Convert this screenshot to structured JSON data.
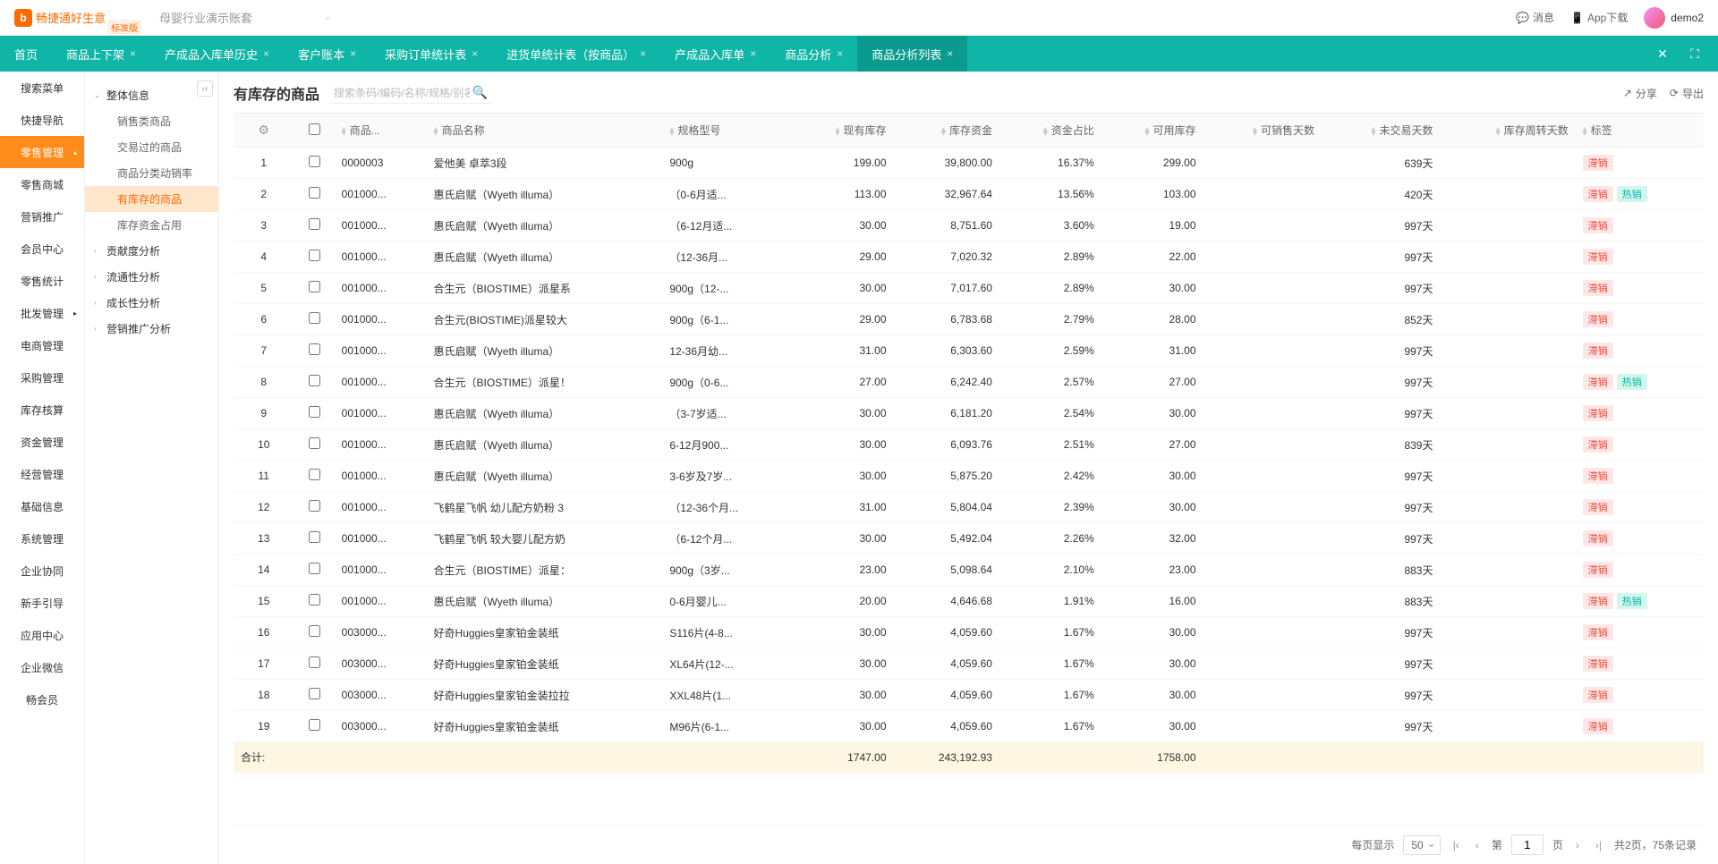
{
  "header": {
    "logo_text": "畅捷通好生意",
    "logo_badge": "标准版",
    "account": "母婴行业演示账套",
    "msg": "消息",
    "download": "App下载",
    "user": "demo2"
  },
  "tabs": [
    {
      "label": "首页",
      "closable": false
    },
    {
      "label": "商品上下架",
      "closable": true
    },
    {
      "label": "产成品入库单历史",
      "closable": true
    },
    {
      "label": "客户账本",
      "closable": true
    },
    {
      "label": "采购订单统计表",
      "closable": true
    },
    {
      "label": "进货单统计表（按商品）",
      "closable": true
    },
    {
      "label": "产成品入库单",
      "closable": true
    },
    {
      "label": "商品分析",
      "closable": true
    },
    {
      "label": "商品分析列表",
      "closable": true,
      "active": true
    }
  ],
  "main_nav": [
    {
      "label": "搜索菜单"
    },
    {
      "label": "快捷导航"
    },
    {
      "label": "零售管理",
      "active": true,
      "expandable": true
    },
    {
      "label": "零售商城"
    },
    {
      "label": "营销推广"
    },
    {
      "label": "会员中心"
    },
    {
      "label": "零售统计"
    },
    {
      "label": "批发管理",
      "expandable": true
    },
    {
      "label": "电商管理"
    },
    {
      "label": "采购管理"
    },
    {
      "label": "库存核算"
    },
    {
      "label": "资金管理"
    },
    {
      "label": "经营管理"
    },
    {
      "label": "基础信息"
    },
    {
      "label": "系统管理"
    },
    {
      "label": "企业协同"
    },
    {
      "label": "新手引导"
    },
    {
      "label": "应用中心"
    },
    {
      "label": "企业微信"
    },
    {
      "label": "畅会员"
    }
  ],
  "tree": [
    {
      "label": "整体信息",
      "level": 0,
      "expanded": true
    },
    {
      "label": "销售类商品",
      "level": 1
    },
    {
      "label": "交易过的商品",
      "level": 1
    },
    {
      "label": "商品分类动销率",
      "level": 1
    },
    {
      "label": "有库存的商品",
      "level": 1,
      "selected": true
    },
    {
      "label": "库存资金占用",
      "level": 1
    },
    {
      "label": "贡献度分析",
      "level": 0
    },
    {
      "label": "流通性分析",
      "level": 0
    },
    {
      "label": "成长性分析",
      "level": 0
    },
    {
      "label": "营销推广分析",
      "level": 0
    }
  ],
  "page": {
    "title": "有库存的商品",
    "search_placeholder": "搜索条码/编码/名称/规格/别名",
    "share": "分享",
    "export": "导出"
  },
  "columns": [
    "",
    "",
    "商品...",
    "商品名称",
    "规格型号",
    "现有库存",
    "库存资金",
    "资金占比",
    "可用库存",
    "可销售天数",
    "未交易天数",
    "库存周转天数",
    "标签"
  ],
  "rows": [
    {
      "n": 1,
      "code": "0000003",
      "name": "爱他美 卓萃3段",
      "spec": "900g",
      "stock": "199.00",
      "fund": "39,800.00",
      "pct": "16.37%",
      "avail": "299.00",
      "sell": "",
      "notrade": "639天",
      "turn": "",
      "tags": [
        "滞销"
      ]
    },
    {
      "n": 2,
      "code": "001000...",
      "name": "惠氏启赋（Wyeth illuma）",
      "spec": "（0-6月适...",
      "stock": "113.00",
      "fund": "32,967.64",
      "pct": "13.56%",
      "avail": "103.00",
      "sell": "",
      "notrade": "420天",
      "turn": "",
      "tags": [
        "滞销",
        "热销"
      ]
    },
    {
      "n": 3,
      "code": "001000...",
      "name": "惠氏启赋（Wyeth illuma）",
      "spec": "（6-12月适...",
      "stock": "30.00",
      "fund": "8,751.60",
      "pct": "3.60%",
      "avail": "19.00",
      "sell": "",
      "notrade": "997天",
      "turn": "",
      "tags": [
        "滞销"
      ]
    },
    {
      "n": 4,
      "code": "001000...",
      "name": "惠氏启赋（Wyeth illuma）",
      "spec": "（12-36月...",
      "stock": "29.00",
      "fund": "7,020.32",
      "pct": "2.89%",
      "avail": "22.00",
      "sell": "",
      "notrade": "997天",
      "turn": "",
      "tags": [
        "滞销"
      ]
    },
    {
      "n": 5,
      "code": "001000...",
      "name": "合生元（BIOSTIME）派星系",
      "spec": "900g（12-...",
      "stock": "30.00",
      "fund": "7,017.60",
      "pct": "2.89%",
      "avail": "30.00",
      "sell": "",
      "notrade": "997天",
      "turn": "",
      "tags": [
        "滞销"
      ]
    },
    {
      "n": 6,
      "code": "001000...",
      "name": "合生元(BIOSTIME)派星较大",
      "spec": "900g（6-1...",
      "stock": "29.00",
      "fund": "6,783.68",
      "pct": "2.79%",
      "avail": "28.00",
      "sell": "",
      "notrade": "852天",
      "turn": "",
      "tags": [
        "滞销"
      ]
    },
    {
      "n": 7,
      "code": "001000...",
      "name": "惠氏启赋（Wyeth illuma）",
      "spec": "12-36月幼...",
      "stock": "31.00",
      "fund": "6,303.60",
      "pct": "2.59%",
      "avail": "31.00",
      "sell": "",
      "notrade": "997天",
      "turn": "",
      "tags": [
        "滞销"
      ]
    },
    {
      "n": 8,
      "code": "001000...",
      "name": "合生元（BIOSTIME）派星！",
      "spec": "900g（0-6...",
      "stock": "27.00",
      "fund": "6,242.40",
      "pct": "2.57%",
      "avail": "27.00",
      "sell": "",
      "notrade": "997天",
      "turn": "",
      "tags": [
        "滞销",
        "热销"
      ]
    },
    {
      "n": 9,
      "code": "001000...",
      "name": "惠氏启赋（Wyeth illuma）",
      "spec": "（3-7岁适...",
      "stock": "30.00",
      "fund": "6,181.20",
      "pct": "2.54%",
      "avail": "30.00",
      "sell": "",
      "notrade": "997天",
      "turn": "",
      "tags": [
        "滞销"
      ]
    },
    {
      "n": 10,
      "code": "001000...",
      "name": "惠氏启赋（Wyeth illuma）",
      "spec": "6-12月900...",
      "stock": "30.00",
      "fund": "6,093.76",
      "pct": "2.51%",
      "avail": "27.00",
      "sell": "",
      "notrade": "839天",
      "turn": "",
      "tags": [
        "滞销"
      ]
    },
    {
      "n": 11,
      "code": "001000...",
      "name": "惠氏启赋（Wyeth illuma）",
      "spec": "3-6岁及7岁...",
      "stock": "30.00",
      "fund": "5,875.20",
      "pct": "2.42%",
      "avail": "30.00",
      "sell": "",
      "notrade": "997天",
      "turn": "",
      "tags": [
        "滞销"
      ]
    },
    {
      "n": 12,
      "code": "001000...",
      "name": "飞鹤星飞帆 幼儿配方奶粉 3",
      "spec": "（12-36个月...",
      "stock": "31.00",
      "fund": "5,804.04",
      "pct": "2.39%",
      "avail": "30.00",
      "sell": "",
      "notrade": "997天",
      "turn": "",
      "tags": [
        "滞销"
      ]
    },
    {
      "n": 13,
      "code": "001000...",
      "name": "飞鹤星飞帆 较大婴儿配方奶",
      "spec": "（6-12个月...",
      "stock": "30.00",
      "fund": "5,492.04",
      "pct": "2.26%",
      "avail": "32.00",
      "sell": "",
      "notrade": "997天",
      "turn": "",
      "tags": [
        "滞销"
      ]
    },
    {
      "n": 14,
      "code": "001000...",
      "name": "合生元（BIOSTIME）派星：",
      "spec": "900g（3岁...",
      "stock": "23.00",
      "fund": "5,098.64",
      "pct": "2.10%",
      "avail": "23.00",
      "sell": "",
      "notrade": "883天",
      "turn": "",
      "tags": [
        "滞销"
      ]
    },
    {
      "n": 15,
      "code": "001000...",
      "name": "惠氏启赋（Wyeth illuma）",
      "spec": "0-6月婴儿...",
      "stock": "20.00",
      "fund": "4,646.68",
      "pct": "1.91%",
      "avail": "16.00",
      "sell": "",
      "notrade": "883天",
      "turn": "",
      "tags": [
        "滞销",
        "热销"
      ]
    },
    {
      "n": 16,
      "code": "003000...",
      "name": "好奇Huggies皇家铂金装纸",
      "spec": "S116片(4-8...",
      "stock": "30.00",
      "fund": "4,059.60",
      "pct": "1.67%",
      "avail": "30.00",
      "sell": "",
      "notrade": "997天",
      "turn": "",
      "tags": [
        "滞销"
      ]
    },
    {
      "n": 17,
      "code": "003000...",
      "name": "好奇Huggies皇家铂金装纸",
      "spec": "XL64片(12-...",
      "stock": "30.00",
      "fund": "4,059.60",
      "pct": "1.67%",
      "avail": "30.00",
      "sell": "",
      "notrade": "997天",
      "turn": "",
      "tags": [
        "滞销"
      ]
    },
    {
      "n": 18,
      "code": "003000...",
      "name": "好奇Huggies皇家铂金装拉拉",
      "spec": "XXL48片(1...",
      "stock": "30.00",
      "fund": "4,059.60",
      "pct": "1.67%",
      "avail": "30.00",
      "sell": "",
      "notrade": "997天",
      "turn": "",
      "tags": [
        "滞销"
      ]
    },
    {
      "n": 19,
      "code": "003000...",
      "name": "好奇Huggies皇家铂金装纸",
      "spec": "M96片(6-1...",
      "stock": "30.00",
      "fund": "4,059.60",
      "pct": "1.67%",
      "avail": "30.00",
      "sell": "",
      "notrade": "997天",
      "turn": "",
      "tags": [
        "滞销"
      ]
    }
  ],
  "totals": {
    "label": "合计:",
    "stock": "1747.00",
    "fund": "243,192.93",
    "avail": "1758.00"
  },
  "pagination": {
    "per_page_label": "每页显示",
    "per_page": "50",
    "page_label_prefix": "第",
    "page": "1",
    "page_label_suffix": "页",
    "total": "共2页，75条记录"
  }
}
